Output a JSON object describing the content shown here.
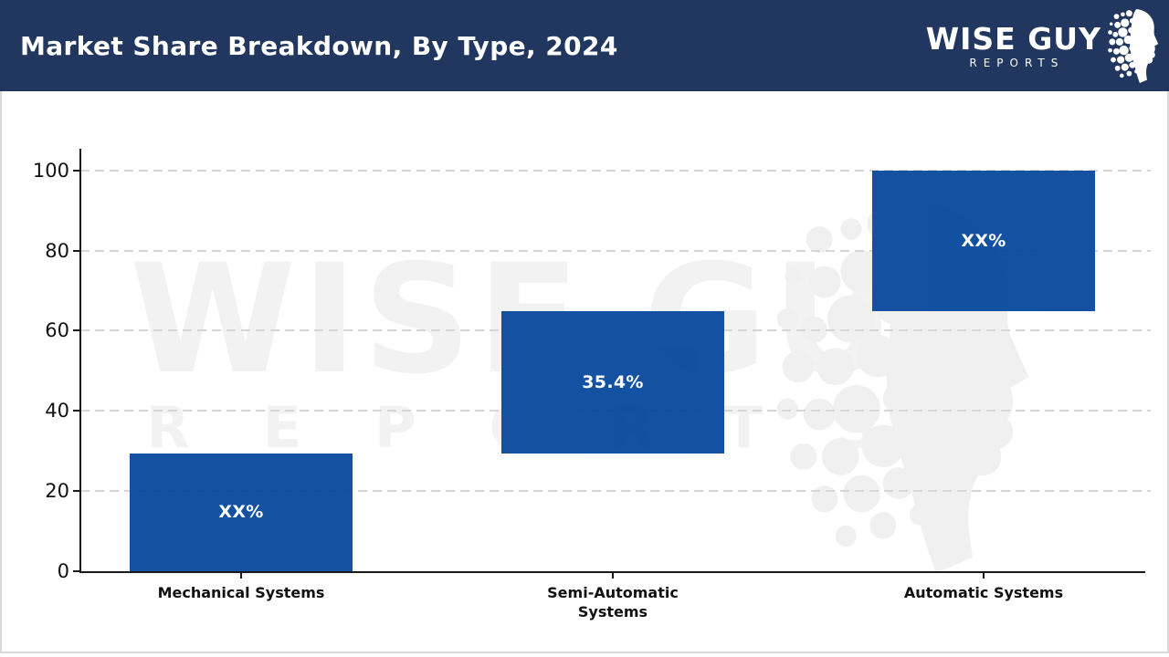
{
  "header": {
    "title": "Market Share Breakdown, By Type, 2024",
    "brand": {
      "name": "WISE GUY",
      "sub": "REPORTS"
    }
  },
  "watermark": {
    "line1": "WISE GUY",
    "line2": "REPORTS"
  },
  "chart_data": {
    "type": "bar",
    "subtype": "stacked-waterfall",
    "title": "Market Share Breakdown, By Type, 2024",
    "categories": [
      "Mechanical Systems",
      "Semi-Automatic\nSystems",
      "Automatic Systems"
    ],
    "segments": [
      {
        "category": "Mechanical Systems",
        "start": 0,
        "end": 29.4,
        "label": "XX%"
      },
      {
        "category": "Semi-Automatic Systems",
        "start": 29.4,
        "end": 64.8,
        "label": "35.4%"
      },
      {
        "category": "Automatic Systems",
        "start": 64.8,
        "end": 100,
        "label": "XX%"
      }
    ],
    "values_displayed": [
      "XX%",
      "35.4%",
      "XX%"
    ],
    "yticks": [
      0,
      20,
      40,
      60,
      80,
      100
    ],
    "ylim": [
      0,
      105
    ],
    "xlabel": "",
    "ylabel": "",
    "grid": "horizontal dashed",
    "legend": "none",
    "bar_color": "#0a4a9f",
    "bar_label_color": "#ffffff",
    "axis_color": "#1a1a1a",
    "grid_color": "#d6d6d6",
    "header_bg": "#21375f",
    "watermark_color": "#f2f2f2"
  }
}
